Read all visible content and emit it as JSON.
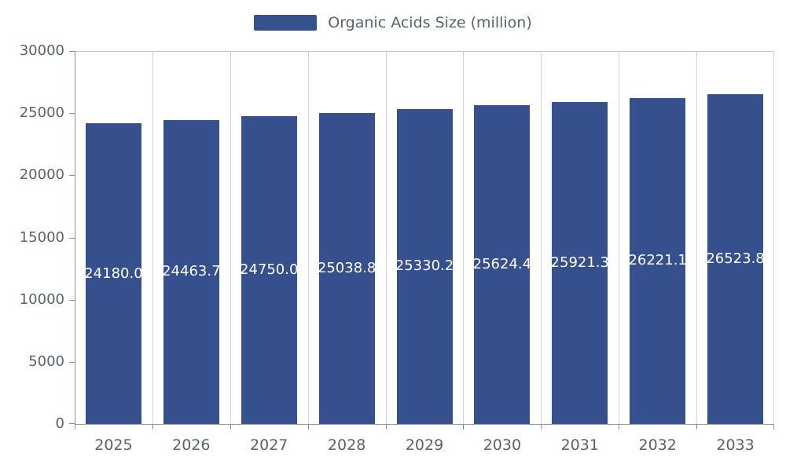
{
  "chart_data": {
    "type": "bar",
    "title": "",
    "legend_label": "Organic Acids Size (million)",
    "legend_position": "top-center",
    "categories": [
      "2025",
      "2026",
      "2027",
      "2028",
      "2029",
      "2030",
      "2031",
      "2032",
      "2033"
    ],
    "values": [
      24180.0,
      24463.7,
      24750.0,
      25038.8,
      25330.2,
      25624.4,
      25921.3,
      26221.1,
      26523.8
    ],
    "bar_labels": [
      "24180.0",
      "24463.7",
      "24750.0",
      "25038.8",
      "25330.2",
      "25624.4",
      "25921.3",
      "26221.1",
      "26523.8"
    ],
    "xlabel": "",
    "ylabel": "",
    "ylim": [
      0,
      30000
    ],
    "yticks": [
      0,
      5000,
      10000,
      15000,
      20000,
      25000,
      30000
    ],
    "ytick_labels": [
      "0",
      "5000",
      "10000",
      "15000",
      "20000",
      "25000",
      "30000"
    ],
    "grid": "vertical",
    "bar_color": "#35508c",
    "bar_label_color": "#ffffff",
    "axis_color": "#8a8f99",
    "grid_color": "#d4d4d4",
    "tick_text_color": "#5a6270",
    "legend_text_color": "#5a6370"
  }
}
